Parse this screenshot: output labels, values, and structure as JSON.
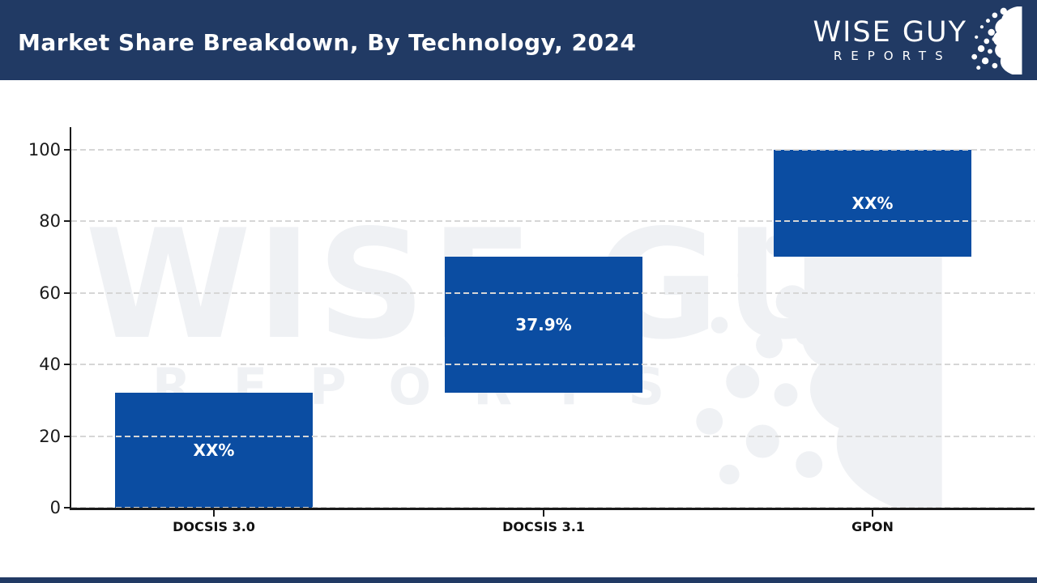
{
  "header": {
    "title": "Market Share Breakdown, By Technology, 2024",
    "logo": {
      "line1": "WISE GUY",
      "line2": "REPORTS"
    }
  },
  "watermark": {
    "line1": "WISE GUY",
    "line2": "REPORTS"
  },
  "chart_data": {
    "type": "bar",
    "variant": "waterfall",
    "title": "Market Share Breakdown, By Technology, 2024",
    "categories": [
      "DOCSIS 3.0",
      "DOCSIS 3.1",
      "GPON"
    ],
    "segments": [
      {
        "category": "DOCSIS 3.0",
        "start": 0,
        "end": 32.2,
        "value": 32.2,
        "label": "XX%"
      },
      {
        "category": "DOCSIS 3.1",
        "start": 32.2,
        "end": 70.1,
        "value": 37.9,
        "label": "37.9%"
      },
      {
        "category": "GPON",
        "start": 70.1,
        "end": 100,
        "value": 29.9,
        "label": "XX%"
      }
    ],
    "yticks": [
      0,
      20,
      40,
      60,
      80,
      100
    ],
    "ylim": [
      0,
      106
    ],
    "xlabel": "",
    "ylabel": "",
    "grid": {
      "axis": "y",
      "style": "dashed",
      "on_top": true
    },
    "legend": null,
    "colors": {
      "bar": "#0b4da2",
      "header_bg": "#213a64",
      "grid": "#d6d6d6",
      "axis": "#1a1a1a",
      "watermark": "#eff1f4",
      "bar_label": "#ffffff"
    }
  }
}
